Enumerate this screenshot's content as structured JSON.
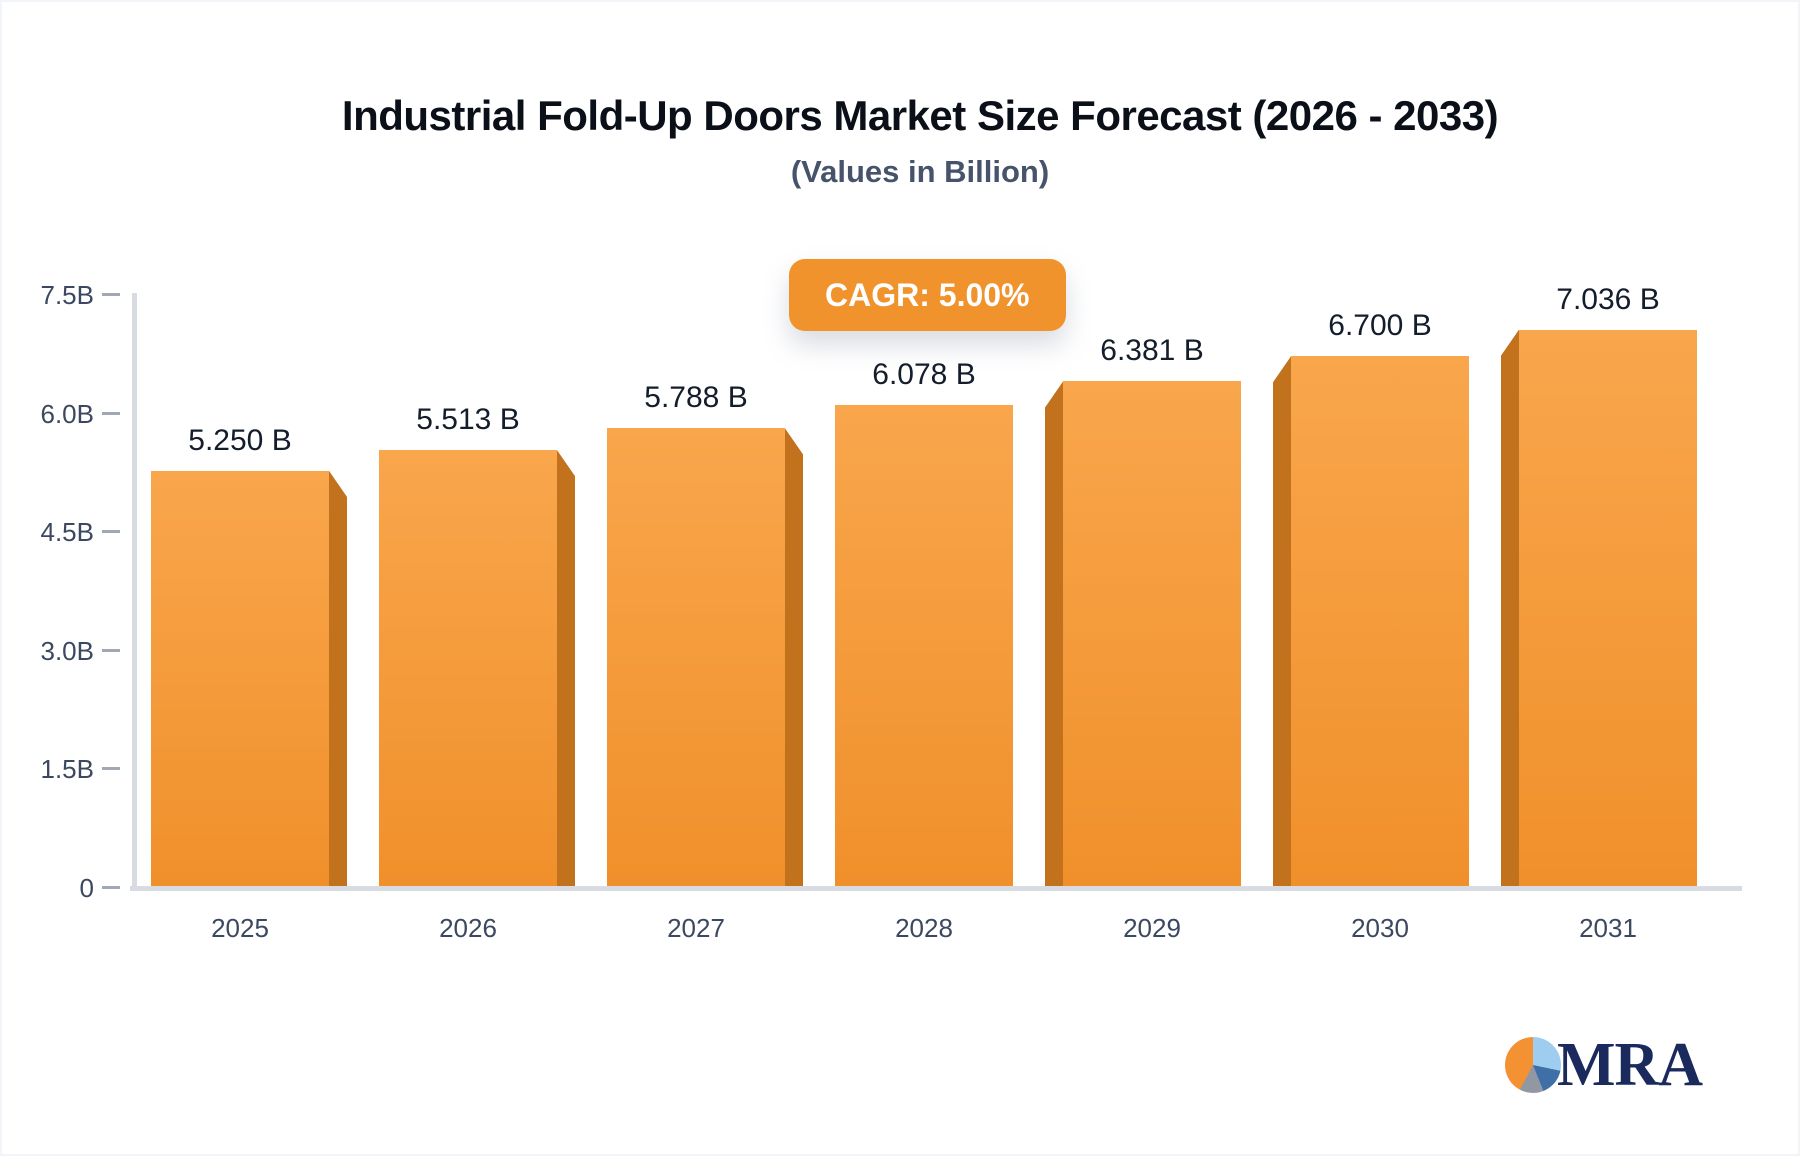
{
  "header": {
    "title": "Industrial Fold-Up Doors Market Size Forecast (2026 - 2033)",
    "subtitle": "(Values in Billion)"
  },
  "badge": {
    "label": "CAGR: 5.00%",
    "bg": "#f1932d",
    "text_color": "#ffffff"
  },
  "chart_data": {
    "type": "bar",
    "title": "Industrial Fold-Up Doors Market Size Forecast (2026 - 2033)",
    "subtitle": "(Values in Billion)",
    "annotation": "CAGR: 5.00%",
    "categories": [
      "2025",
      "2026",
      "2027",
      "2028",
      "2029",
      "2030",
      "2031"
    ],
    "values": [
      5.25,
      5.513,
      5.788,
      6.078,
      6.381,
      6.7,
      7.036
    ],
    "value_labels": [
      "5.250 B",
      "5.513 B",
      "5.788 B",
      "6.078 B",
      "6.381 B",
      "6.700 B",
      "7.036 B"
    ],
    "xlabel": "",
    "ylabel": "",
    "ylim": [
      0,
      7.5
    ],
    "ytick_values": [
      0,
      1.5,
      3.0,
      4.5,
      6.0,
      7.5
    ],
    "ytick_labels": [
      "0",
      "1.5B",
      "3.0B",
      "4.5B",
      "6.0B",
      "7.5B"
    ],
    "grid": false,
    "legend_position": "none",
    "colors": {
      "bar_face_top": "#f9a64c",
      "bar_face_bottom": "#f0902b",
      "bar_side": "#c2711d",
      "axis": "#d8dce2",
      "tick_dash": "#a0a8b4",
      "tick_label": "#3c4861",
      "value_label": "#141d2b"
    }
  },
  "logo": {
    "text": "MRA",
    "text_color": "#1a2a5c",
    "pie_slice_colors": [
      "#f49133",
      "#9fcdef",
      "#3e6fa6",
      "#9298a3"
    ]
  }
}
